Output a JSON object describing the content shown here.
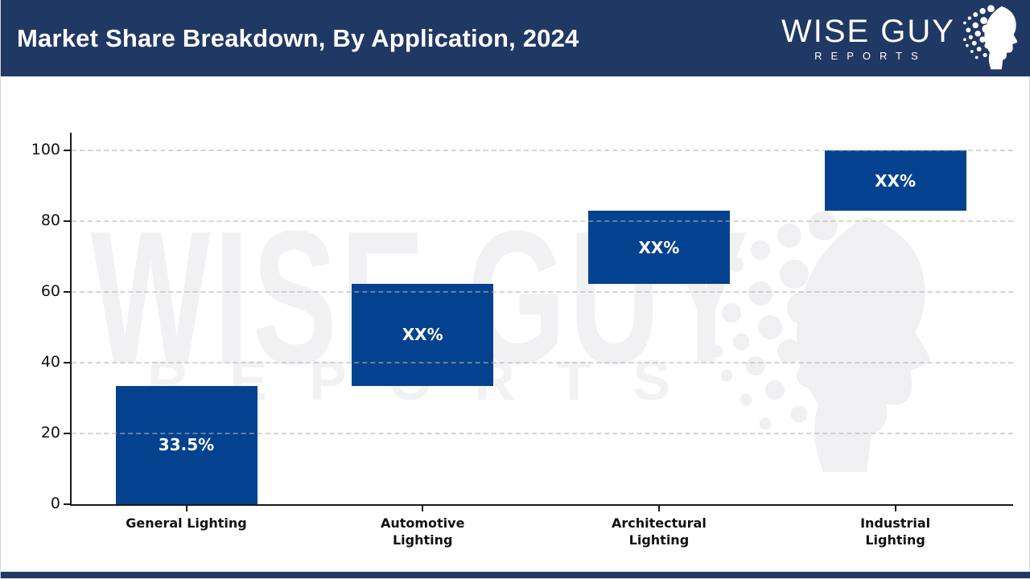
{
  "header": {
    "title": "Market Share Breakdown, By Application, 2024",
    "bg_color": "#203864",
    "logo": {
      "main": "WISE GUY",
      "sub": "REPORTS"
    }
  },
  "watermark": {
    "main": "WISE GUY",
    "sub": "REPORTS"
  },
  "chart_data": {
    "type": "bar",
    "subtype": "floating-waterfall",
    "title": "Market Share Breakdown, By Application, 2024",
    "categories": [
      "General Lighting",
      "Automotive Lighting",
      "Architectural Lighting",
      "Industrial Lighting"
    ],
    "categories_display": [
      [
        "General Lighting"
      ],
      [
        "Automotive",
        "Lighting"
      ],
      [
        "Architectural",
        "Lighting"
      ],
      [
        "Industrial",
        "Lighting"
      ]
    ],
    "series": [
      {
        "name": "General Lighting",
        "span": [
          0,
          33.5
        ],
        "label": "33.5%"
      },
      {
        "name": "Automotive Lighting",
        "span": [
          33.5,
          62.3
        ],
        "label": "XX%"
      },
      {
        "name": "Architectural Lighting",
        "span": [
          62.3,
          82.9
        ],
        "label": "XX%"
      },
      {
        "name": "Industrial Lighting",
        "span": [
          82.9,
          100
        ],
        "label": "XX%"
      }
    ],
    "ylim": [
      0,
      100
    ],
    "yticks": [
      0,
      20,
      40,
      60,
      80,
      100
    ],
    "xlabel": "",
    "ylabel": "",
    "grid": "horizontal-dashed",
    "legend": "none",
    "bar_color": "#04428f",
    "bar_label_color": "#ffffff",
    "axis_color": "#1a1a1a",
    "grid_color": "#d6d6d6"
  }
}
